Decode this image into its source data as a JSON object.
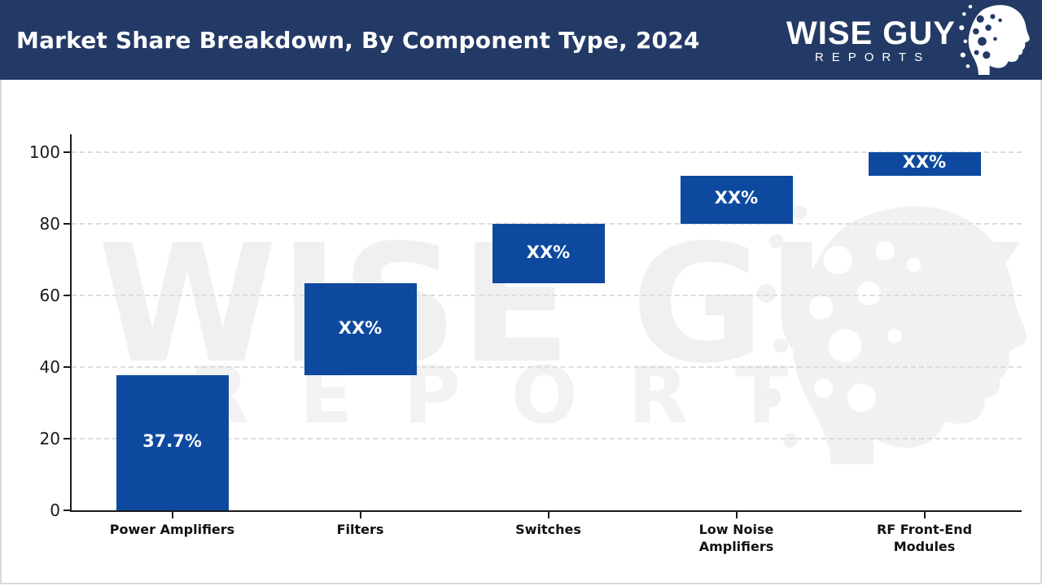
{
  "header": {
    "title": "Market Share Breakdown, By Component Type, 2024",
    "logo": {
      "line1": "WISE GUY",
      "line2": "REPORTS"
    }
  },
  "watermark": {
    "line1": "WISE GUY",
    "line2": "REPORTS"
  },
  "chart_data": {
    "type": "bar",
    "variant": "waterfall",
    "title": "Market Share Breakdown, By Component Type, 2024",
    "xlabel": "",
    "ylabel": "",
    "categories": [
      "Power Amplifiers",
      "Filters",
      "Switches",
      "Low Noise Amplifiers",
      "RF Front-End Modules"
    ],
    "segments": [
      {
        "category": "Power Amplifiers",
        "start": 0,
        "end": 37.7,
        "value": 37.7,
        "label": "37.7%"
      },
      {
        "category": "Filters",
        "start": 37.7,
        "end": 63.4,
        "value": 25.7,
        "label": "XX%"
      },
      {
        "category": "Switches",
        "start": 63.4,
        "end": 80.0,
        "value": 16.6,
        "label": "XX%"
      },
      {
        "category": "Low Noise Amplifiers",
        "start": 80.0,
        "end": 93.5,
        "value": 13.5,
        "label": "XX%"
      },
      {
        "category": "RF Front-End Modules",
        "start": 93.5,
        "end": 100.0,
        "value": 6.5,
        "label": "XX%"
      }
    ],
    "y_ticks": [
      0,
      20,
      40,
      60,
      80,
      100
    ],
    "ylim": [
      0,
      105
    ],
    "grid": "horizontal-dashed",
    "legend": "none",
    "colors": {
      "header_bg": "#243a66",
      "bar": "#0d4a9f",
      "bar_label": "#ffffff",
      "grid": "#dcdcdc",
      "axis": "#1a1a1a",
      "frame_border": "#d9d9d9",
      "watermark": "#f1f1f1"
    }
  }
}
